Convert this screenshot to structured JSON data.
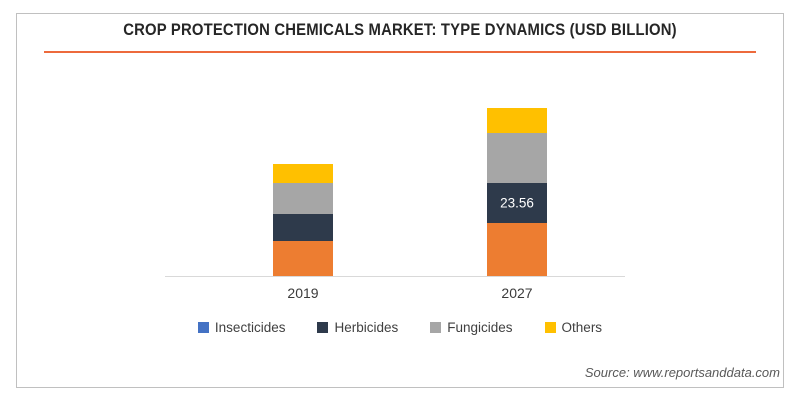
{
  "header": {
    "title": "CROP PROTECTION CHEMICALS MARKET: TYPE DYNAMICS (USD BILLION)"
  },
  "chart_data": {
    "type": "bar",
    "stacked": true,
    "title": "CROP PROTECTION CHEMICALS MARKET: TYPE DYNAMICS (USD BILLION)",
    "units": "USD Billion",
    "categories": [
      "2019",
      "2027"
    ],
    "series": [
      {
        "name": "Insecticides",
        "legend_color": "#4472c4",
        "bar_color": "#ed7d31",
        "values": [
          20.6,
          31.2
        ],
        "data_labels": [
          "",
          ""
        ]
      },
      {
        "name": "Herbicides",
        "legend_color": "#2e3a4b",
        "bar_color": "#2e3a4b",
        "values": [
          15.9,
          23.56
        ],
        "data_labels": [
          "",
          "23.56"
        ]
      },
      {
        "name": "Fungicides",
        "legend_color": "#a6a6a6",
        "bar_color": "#a6a6a6",
        "values": [
          18.3,
          29.45
        ],
        "data_labels": [
          "",
          ""
        ]
      },
      {
        "name": "Others",
        "legend_color": "#ffc000",
        "bar_color": "#ffc000",
        "values": [
          11.2,
          14.7
        ],
        "data_labels": [
          "",
          ""
        ]
      }
    ],
    "xlabel": "",
    "ylabel": "",
    "ylim": [
      0,
      100
    ],
    "grid": false,
    "y_axis_visible": false,
    "legend_position": "bottom"
  },
  "footer": {
    "source": "Source: www.reportsanddata.com"
  },
  "colors": {
    "title_underline": "#ed6a3c",
    "frame_border": "#c0c0c0",
    "axis_line": "#d9d9d9",
    "title_text": "#262626"
  }
}
